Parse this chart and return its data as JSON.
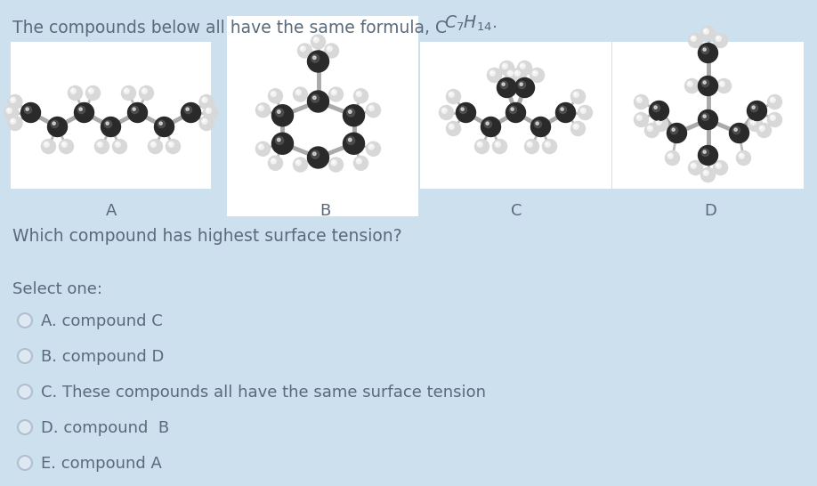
{
  "background_color": "#cde0ee",
  "title_prefix": "The compounds below all have the same formula, C",
  "title_sub7": "7",
  "title_H": "H",
  "title_sub14": "14",
  "title_dot": ".",
  "question": "Which compound has highest surface tension?",
  "select_label": "Select one:",
  "options": [
    "A. compound C",
    "B. compound D",
    "C. These compounds all have the same surface tension",
    "D. compound  B",
    "E. compound A"
  ],
  "compound_labels": [
    "A",
    "B",
    "C",
    "D"
  ],
  "text_color": "#5a6a7a",
  "radio_outer_color": "#b0c0d0",
  "radio_inner_color": "#dde8f0",
  "white_box_color": "#f0f4f8",
  "carbon_color": "#2a2a2a",
  "carbon_highlight": "#606060",
  "hydrogen_color": "#d8d8d8",
  "hydrogen_highlight": "#ffffff",
  "bond_color": "#888888"
}
